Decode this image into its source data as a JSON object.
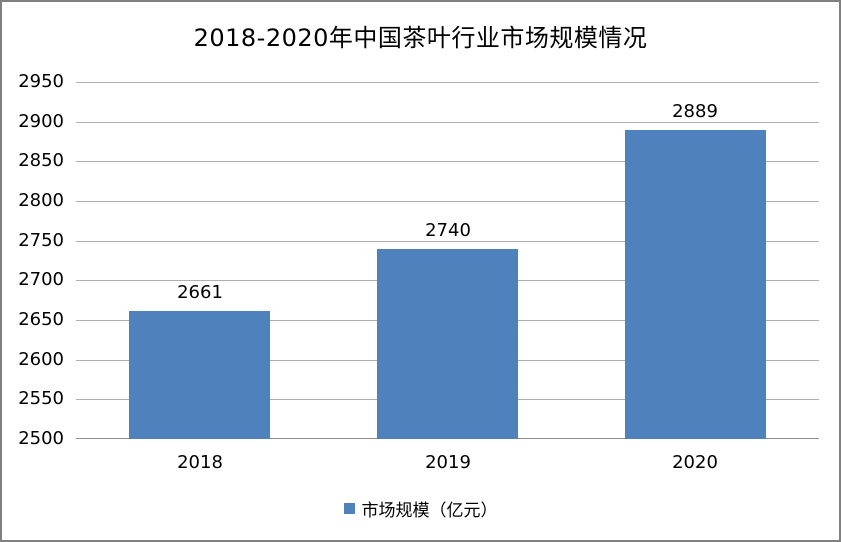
{
  "title": "2018-2020年中国茶叶行业市场规模情况",
  "legend": {
    "label": "市场规模（亿元）"
  },
  "colors": {
    "bar": "#4F81BD",
    "gridline": "#AFAFAF",
    "axis_line": "#8C8C8C",
    "frame_border": "#808080",
    "text": "#000000"
  },
  "chart_data": {
    "type": "bar",
    "title": "2018-2020年中国茶叶行业市场规模情况",
    "categories": [
      "2018",
      "2019",
      "2020"
    ],
    "series": [
      {
        "name": "市场规模（亿元）",
        "values": [
          2661,
          2740,
          2889
        ]
      }
    ],
    "data_labels": [
      2661,
      2740,
      2889
    ],
    "xlabel": "",
    "ylabel": "",
    "ylim": [
      2500,
      2950
    ],
    "ytick_step": 50,
    "yticks": [
      2500,
      2550,
      2600,
      2650,
      2700,
      2750,
      2800,
      2850,
      2900,
      2950
    ],
    "grid": true,
    "legend_position": "bottom"
  }
}
